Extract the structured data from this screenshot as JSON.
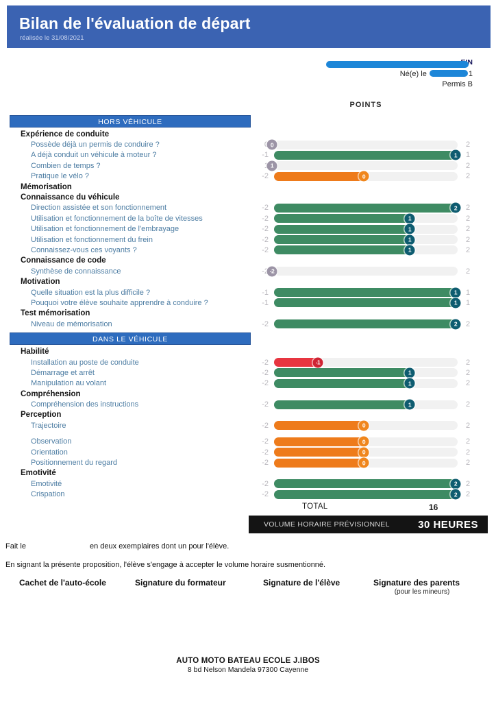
{
  "colors": {
    "header_bg": "#3b63b2",
    "section_bg": "#2e6cbe",
    "redaction": "#1d86d8",
    "green": "#3e8b63",
    "green_dot": "#0e5c70",
    "orange": "#ee7b1b",
    "orange_dot": "#f0861c",
    "red": "#e73540",
    "red_dot": "#cf2433",
    "gray_dot": "#9c94a6",
    "track": "#f1f1f1",
    "volume_bg": "#141414"
  },
  "header": {
    "title": "Bilan de l'évaluation de départ",
    "subtitle": "réalisée le 31/08/2021"
  },
  "student": {
    "name_visible_fragment": "EIN",
    "birth_label": "Né(e) le",
    "birth_visible_fragment": "1",
    "permit": "Permis B"
  },
  "chart_data": {
    "type": "bar",
    "orientation": "horizontal",
    "title": "POINTS",
    "sections": [
      {
        "label": "HORS VÉHICULE",
        "groups": [
          {
            "category": "Expérience de conduite",
            "items": [
              {
                "label": "Possède déjà un permis de conduire ?",
                "min": 0,
                "max": 2,
                "value": 0,
                "style": "gray"
              },
              {
                "label": "A déjà conduit un véhicule à moteur ?",
                "min": -1,
                "max": 1,
                "value": 1,
                "style": "green"
              },
              {
                "label": "Combien de temps ?",
                "min": 1,
                "max": 2,
                "value": 1,
                "style": "gray"
              },
              {
                "label": "Pratique le vélo ?",
                "min": -2,
                "max": 2,
                "value": 0,
                "style": "orange"
              }
            ]
          },
          {
            "category": "Mémorisation",
            "items": []
          },
          {
            "category": "Connaissance du véhicule",
            "items": [
              {
                "label": "Direction assistée et son fonctionnement",
                "min": -2,
                "max": 2,
                "value": 2,
                "style": "green"
              },
              {
                "label": "Utilisation et fonctionnement de la boîte de vitesses",
                "min": -2,
                "max": 2,
                "value": 1,
                "style": "green"
              },
              {
                "label": "Utilisation et fonctionnement de l'embrayage",
                "min": -2,
                "max": 2,
                "value": 1,
                "style": "green"
              },
              {
                "label": "Utilisation et fonctionnement du frein",
                "min": -2,
                "max": 2,
                "value": 1,
                "style": "green"
              },
              {
                "label": "Connaissez-vous ces voyants ?",
                "min": -2,
                "max": 2,
                "value": 1,
                "style": "green"
              }
            ]
          },
          {
            "category": "Connaissance de code",
            "items": [
              {
                "label": "Synthèse de connaissance",
                "min": -2,
                "max": 2,
                "value": -2,
                "style": "gray"
              }
            ]
          },
          {
            "category": "Motivation",
            "items": [
              {
                "label": "Quelle situation est la plus difficile ?",
                "min": -1,
                "max": 1,
                "value": 1,
                "style": "green"
              },
              {
                "label": "Pouquoi votre élève souhaite apprendre à conduire ?",
                "min": -1,
                "max": 1,
                "value": 1,
                "style": "green"
              }
            ]
          },
          {
            "category": "Test mémorisation",
            "items": [
              {
                "label": "Niveau de mémorisation",
                "min": -2,
                "max": 2,
                "value": 2,
                "style": "green"
              }
            ]
          }
        ]
      },
      {
        "label": "DANS LE VÉHICULE",
        "groups": [
          {
            "category": "Habilité",
            "items": [
              {
                "label": "Installation au poste de conduite",
                "min": -2,
                "max": 2,
                "value": -1,
                "style": "red"
              },
              {
                "label": "Démarrage et arrêt",
                "min": -2,
                "max": 2,
                "value": 1,
                "style": "green"
              },
              {
                "label": "Manipulation au volant",
                "min": -2,
                "max": 2,
                "value": 1,
                "style": "green"
              }
            ]
          },
          {
            "category": "Compréhension",
            "items": [
              {
                "label": "Compréhension des instructions",
                "min": -2,
                "max": 2,
                "value": 1,
                "style": "green"
              }
            ]
          },
          {
            "category": "Perception",
            "items": [
              {
                "label": "Trajectoire",
                "min": -2,
                "max": 2,
                "value": 0,
                "style": "orange",
                "gap_after": true
              },
              {
                "label": "Observation",
                "min": -2,
                "max": 2,
                "value": 0,
                "style": "orange"
              },
              {
                "label": "Orientation",
                "min": -2,
                "max": 2,
                "value": 0,
                "style": "orange"
              },
              {
                "label": "Positionnement du regard",
                "min": -2,
                "max": 2,
                "value": 0,
                "style": "orange"
              }
            ]
          },
          {
            "category": "Emotivité",
            "items": [
              {
                "label": "Emotivité",
                "min": -2,
                "max": 2,
                "value": 2,
                "style": "green"
              },
              {
                "label": "Crispation",
                "min": -2,
                "max": 2,
                "value": 2,
                "style": "green"
              }
            ]
          }
        ]
      }
    ],
    "total_label": "TOTAL",
    "total_value": "16"
  },
  "volume": {
    "label": "VOLUME HORAIRE PRÉVISIONNEL",
    "value": "30 HEURES"
  },
  "declaration": {
    "fait_le": "Fait le",
    "copies": "en deux exemplaires dont un pour l'élève.",
    "engagement": "En signant la présente proposition, l'élève s'engage à accepter le volume horaire susmentionné."
  },
  "signatures": {
    "col1": "Cachet de l'auto-école",
    "col2": "Signature du formateur",
    "col3": "Signature de l'élève",
    "col4": "Signature des parents",
    "col4_note": "(pour les mineurs)"
  },
  "footer": {
    "school": "AUTO MOTO BATEAU ECOLE J.IBOS",
    "address": "8 bd Nelson Mandela 97300 Cayenne"
  }
}
